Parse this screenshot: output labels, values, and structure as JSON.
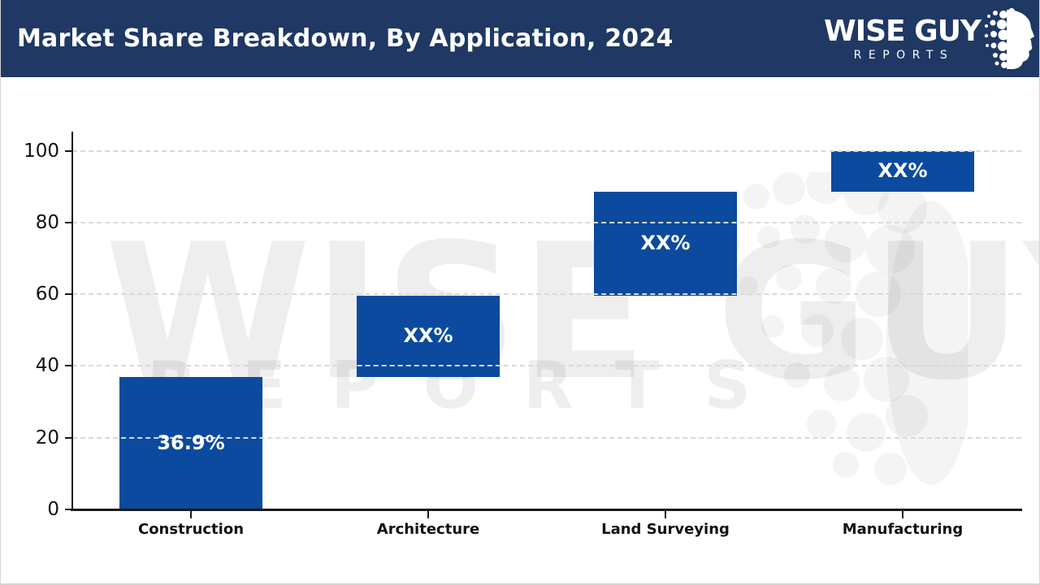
{
  "header": {
    "title": "Market Share Breakdown, By Application, 2024",
    "bg_color": "#1f3864",
    "logo": {
      "line1": "WISE GUY",
      "line2": "REPORTS"
    }
  },
  "watermark": {
    "line1": "WISE GUY",
    "line2": "REPORTS"
  },
  "chart_data": {
    "type": "bar",
    "subtype": "waterfall-stacked",
    "title": "Market Share Breakdown, By Application, 2024",
    "xlabel": "",
    "ylabel": "",
    "categories": [
      "Construction",
      "Architecture",
      "Land Surveying",
      "Manufacturing"
    ],
    "segments": [
      {
        "category": "Construction",
        "start": 0,
        "end": 36.9,
        "value": 36.9,
        "label": "36.9%"
      },
      {
        "category": "Architecture",
        "start": 36.9,
        "end": 59.5,
        "value": 22.6,
        "label": "XX%"
      },
      {
        "category": "Land Surveying",
        "start": 59.5,
        "end": 88.6,
        "value": 29.1,
        "label": "XX%"
      },
      {
        "category": "Manufacturing",
        "start": 88.6,
        "end": 100,
        "value": 11.4,
        "label": "XX%"
      }
    ],
    "yticks": [
      0,
      20,
      40,
      60,
      80,
      100
    ],
    "ylim": [
      0,
      105
    ],
    "grid": "dashed horizontal, drawn over bars",
    "legend": "none",
    "bar_color": "#0b4a9e",
    "bar_label_color": "#ffffff",
    "axis_color": "#1a1a1a",
    "grid_color": "#d9d9d9",
    "watermark_color": "rgba(0,0,0,0.065)"
  }
}
